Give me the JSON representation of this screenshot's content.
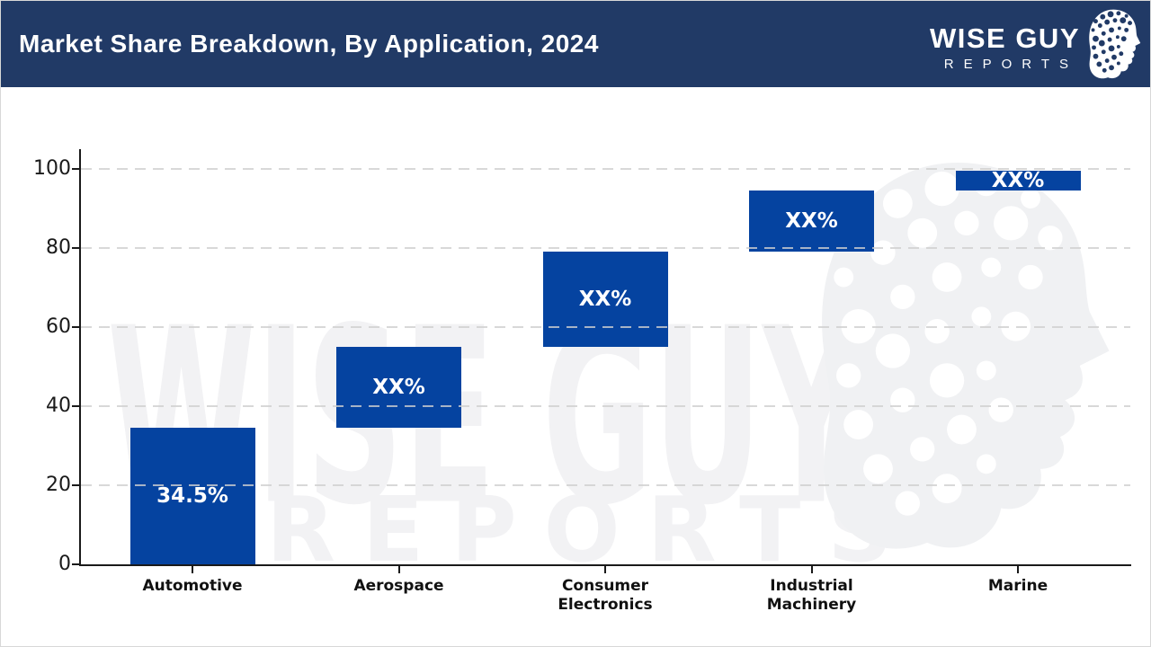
{
  "page": {
    "background": "#ffffff",
    "border_color": "#d8d8d8"
  },
  "header": {
    "background": "#213A66",
    "title": "Market Share Breakdown, By Application, 2024",
    "title_color": "#ffffff",
    "logo": {
      "name": "WISE GUY",
      "subname": "REPORTS",
      "icon": "dotted-face-profile-icon"
    }
  },
  "watermark": {
    "line1": "WISE GUY",
    "line2": "REPORTS",
    "icon": "dotted-face-profile-icon"
  },
  "chart_data": {
    "type": "bar",
    "variant": "stepped-waterfall",
    "title": "Market Share Breakdown, By Application, 2024",
    "categories": [
      "Automotive",
      "Aerospace",
      "Consumer\nElectronics",
      "Industrial\nMachinery",
      "Marine"
    ],
    "segments": [
      {
        "category": "Automotive",
        "start": 0,
        "end": 34.5,
        "label": "34.5%"
      },
      {
        "category": "Aerospace",
        "start": 34.5,
        "end": 55,
        "label": "XX%"
      },
      {
        "category": "Consumer Electronics",
        "start": 55,
        "end": 79,
        "label": "XX%"
      },
      {
        "category": "Industrial Machinery",
        "start": 79,
        "end": 94.5,
        "label": "XX%"
      },
      {
        "category": "Marine",
        "start": 94.5,
        "end": 99.5,
        "label": "XX%"
      }
    ],
    "xlabel": "",
    "ylabel": "",
    "yticks": [
      0,
      20,
      40,
      60,
      80,
      100
    ],
    "ylim": [
      0,
      105
    ],
    "grid": {
      "axis": "y",
      "style": "dashed",
      "color": "#cfcfcf",
      "drawn_over_bars": true
    },
    "legend": null,
    "bar_color": "#0543A0",
    "bar_label_color": "#ffffff",
    "axis_color": "#1a1a1a",
    "tick_label_color": "#1a1a1a"
  }
}
